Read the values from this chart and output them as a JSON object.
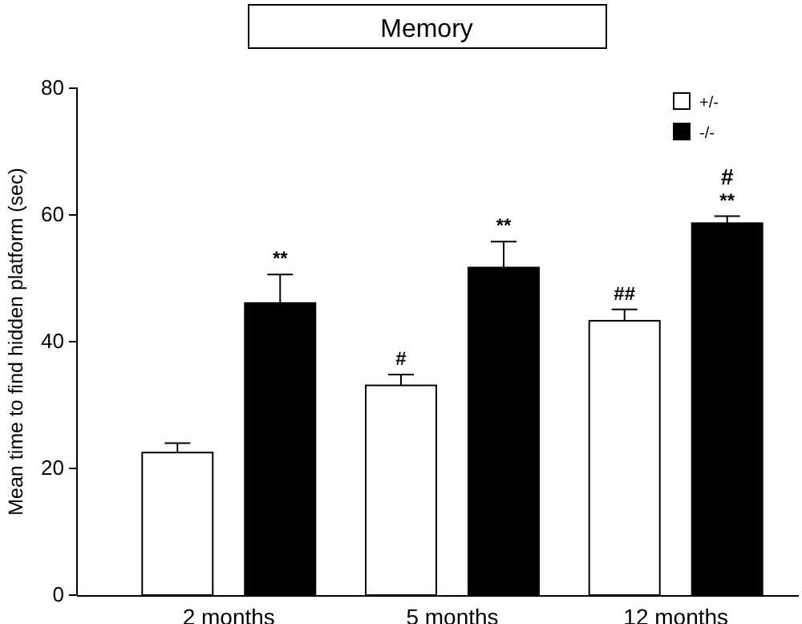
{
  "chart_data": {
    "type": "bar",
    "title": "Memory",
    "ylabel": "Mean time to find hidden platform (sec)",
    "categories": [
      "2 months",
      "5 months",
      "12 months"
    ],
    "series": [
      {
        "name": "+/-",
        "color": "#ffffff",
        "values": [
          22.5,
          33.1,
          43.3
        ],
        "errors": [
          1.5,
          1.7,
          1.8
        ]
      },
      {
        "name": "-/-",
        "color": "#000000",
        "values": [
          46.1,
          51.7,
          58.7
        ],
        "errors": [
          4.5,
          4.1,
          1.1
        ]
      }
    ],
    "ylim": [
      0,
      80
    ],
    "yticks": [
      0,
      20,
      40,
      60,
      80
    ],
    "legend": "top right",
    "annotations": [
      "**",
      "#",
      "**",
      "##",
      "**",
      "#"
    ]
  }
}
